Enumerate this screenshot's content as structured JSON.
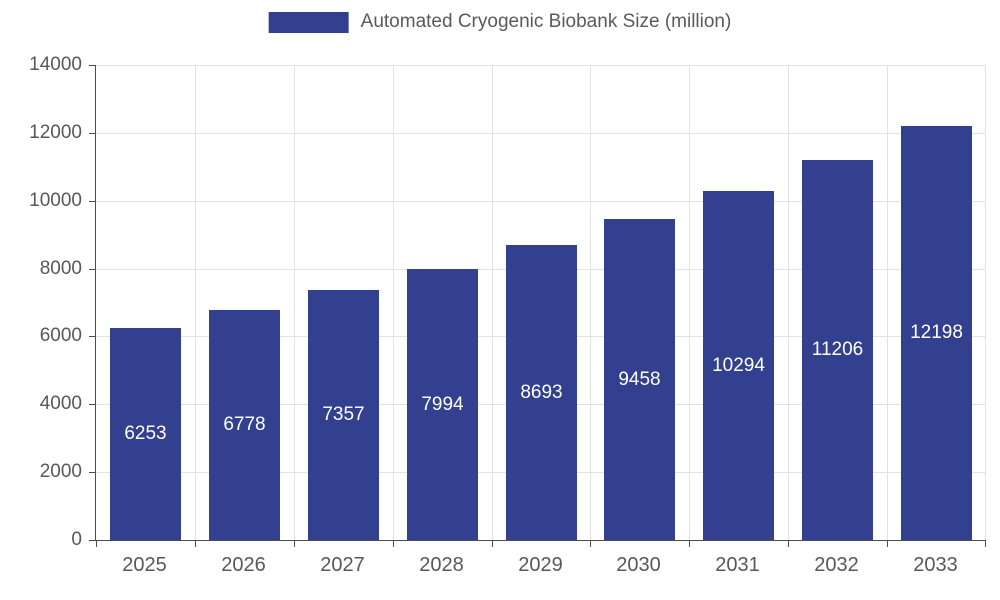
{
  "legend": {
    "label": "Automated Cryogenic Biobank Size (million)"
  },
  "colors": {
    "bar": "#32408f",
    "axis_text": "#585858",
    "grid_line": "#e2e2e2",
    "axis_line": "#4d4d4d",
    "legend_text": "#5a5a5a",
    "value_label_text": "#ffffff"
  },
  "chart_data": {
    "type": "bar",
    "title": "Automated Cryogenic Biobank Size (million)",
    "categories": [
      "2025",
      "2026",
      "2027",
      "2028",
      "2029",
      "2030",
      "2031",
      "2032",
      "2033"
    ],
    "values": [
      6253,
      6778,
      7357,
      7994,
      8693,
      9458,
      10294,
      11206,
      12198
    ],
    "xlabel": "",
    "ylabel": "",
    "ylim": [
      0,
      14000
    ],
    "ytick_step": 2000,
    "ytick_labels": [
      "0",
      "2000",
      "4000",
      "6000",
      "8000",
      "10000",
      "12000",
      "14000"
    ],
    "grid": true,
    "legend_position": "top",
    "value_labels": "inside-middle"
  }
}
